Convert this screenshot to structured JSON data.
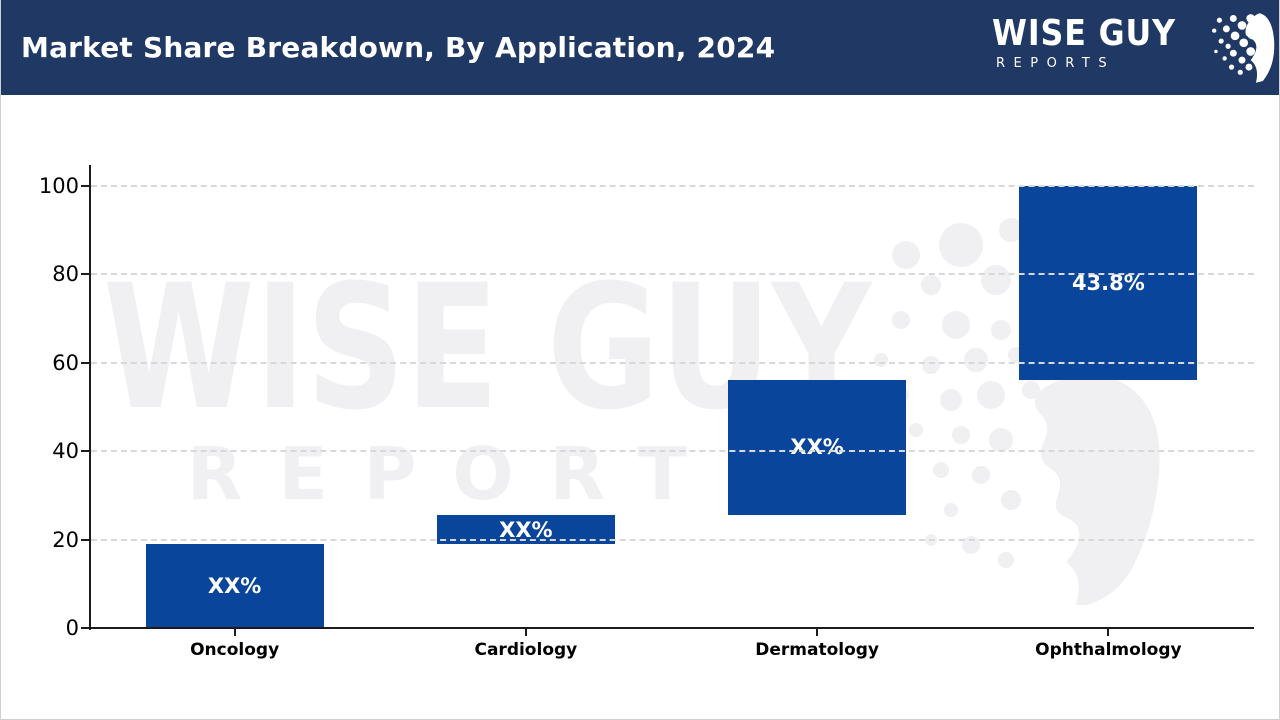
{
  "header": {
    "title": "Market Share Breakdown, By Application, 2024",
    "logo": {
      "name": "WISE GUY",
      "tagline": "REPORTS"
    }
  },
  "watermark": {
    "text": "WISE GUY",
    "tagline": "REPORTS"
  },
  "colors": {
    "header_bg": "#203864",
    "bar_fill": "#0a459c",
    "bar_label_text": "#ffffff",
    "gridline": "#d8d8d8",
    "axis": "#1c1c1c",
    "tick_label": "#000000",
    "watermark": "#f0f0f2"
  },
  "chart_data": {
    "type": "bar",
    "subtype": "waterfall",
    "title": "Market Share Breakdown, By Application, 2024",
    "categories": [
      "Oncology",
      "Cardiology",
      "Dermatology",
      "Ophthalmology"
    ],
    "series": [
      {
        "name": "Market share (%)",
        "segments": [
          {
            "category": "Oncology",
            "start": 0,
            "end": 19,
            "value_label": "XX%"
          },
          {
            "category": "Cardiology",
            "start": 19,
            "end": 25.5,
            "value_label": "XX%"
          },
          {
            "category": "Dermatology",
            "start": 25.5,
            "end": 56.2,
            "value_label": "XX%"
          },
          {
            "category": "Ophthalmology",
            "start": 56.2,
            "end": 100,
            "value_label": "43.8%"
          }
        ]
      }
    ],
    "xlabel": "",
    "ylabel": "",
    "ylim": [
      0,
      100
    ],
    "yticks": [
      0,
      20,
      40,
      60,
      80,
      100
    ],
    "grid": "horizontal-dashed",
    "legend": "none"
  }
}
